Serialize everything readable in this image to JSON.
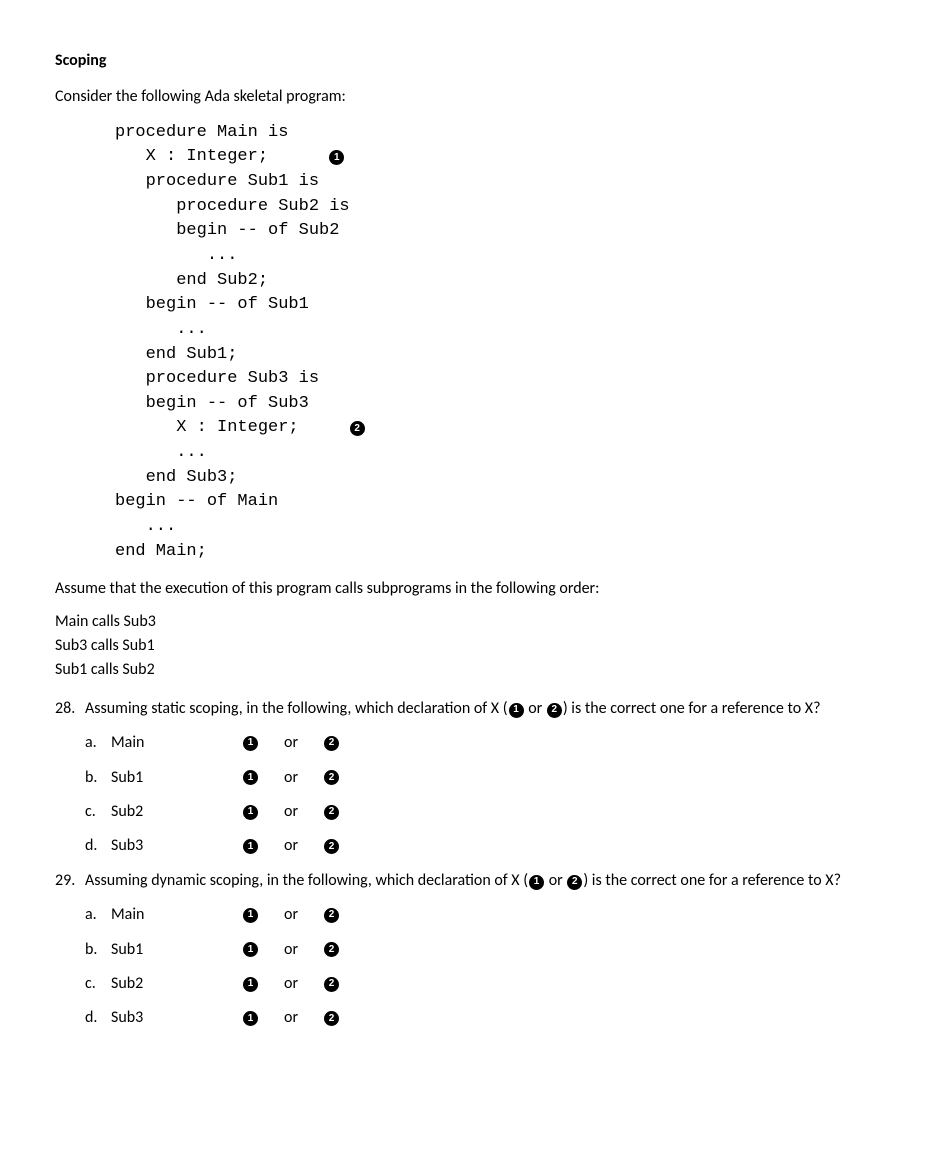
{
  "heading": "Scoping",
  "intro": "Consider the following Ada skeletal program:",
  "code": {
    "lines": [
      {
        "indent": 0,
        "text": "procedure Main is",
        "icon": null
      },
      {
        "indent": 1,
        "text": "X : Integer;      ",
        "icon": "1"
      },
      {
        "indent": 1,
        "text": "procedure Sub1 is",
        "icon": null
      },
      {
        "indent": 2,
        "text": "procedure Sub2 is",
        "icon": null
      },
      {
        "indent": 2,
        "text": "begin -- of Sub2",
        "icon": null
      },
      {
        "indent": 3,
        "text": "...",
        "icon": null
      },
      {
        "indent": 2,
        "text": "end Sub2;",
        "icon": null
      },
      {
        "indent": 1,
        "text": "begin -- of Sub1",
        "icon": null
      },
      {
        "indent": 2,
        "text": "...",
        "icon": null
      },
      {
        "indent": 1,
        "text": "end Sub1;",
        "icon": null
      },
      {
        "indent": 1,
        "text": "procedure Sub3 is",
        "icon": null
      },
      {
        "indent": 1,
        "text": "begin -- of Sub3",
        "icon": null
      },
      {
        "indent": 2,
        "text": "X : Integer;     ",
        "icon": "2"
      },
      {
        "indent": 2,
        "text": "...",
        "icon": null
      },
      {
        "indent": 1,
        "text": "end Sub3;",
        "icon": null
      },
      {
        "indent": 0,
        "text": "begin -- of Main",
        "icon": null
      },
      {
        "indent": 1,
        "text": "...",
        "icon": null
      },
      {
        "indent": 0,
        "text": "end Main;",
        "icon": null
      }
    ],
    "indent_unit": "   "
  },
  "assume": "Assume that the execution of this program calls subprograms in the following order:",
  "call_order": [
    "Main calls Sub3",
    "Sub3 calls Sub1",
    "Sub1 calls Sub2"
  ],
  "q28": {
    "num": "28.",
    "text_before": "Assuming static scoping, in the following, which declaration of X (",
    "text_mid": " or ",
    "text_after": ") is the correct one for a reference to X?"
  },
  "q29": {
    "num": "29.",
    "text_before": "Assuming dynamic scoping, in the following, which declaration of X (",
    "text_mid": " or ",
    "text_after": ") is the correct one for a reference to X?"
  },
  "choices": [
    {
      "letter": "a.",
      "label": "Main"
    },
    {
      "letter": "b.",
      "label": "Sub1"
    },
    {
      "letter": "c.",
      "label": "Sub2"
    },
    {
      "letter": "d.",
      "label": "Sub3"
    }
  ],
  "or": "or",
  "icons": {
    "one": "1",
    "two": "2"
  }
}
